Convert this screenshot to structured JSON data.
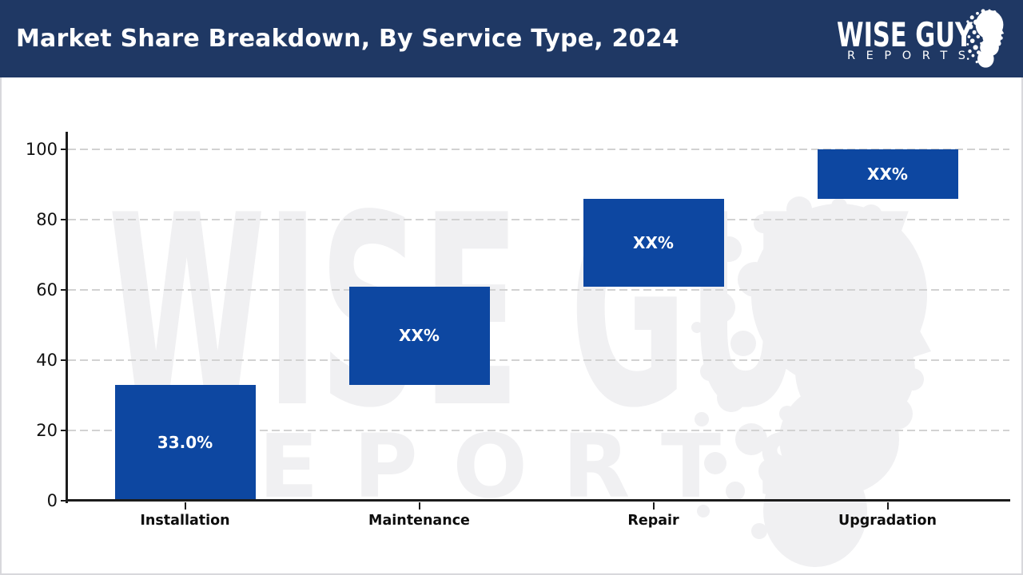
{
  "header": {
    "title": "Market Share Breakdown, By Service Type, 2024",
    "logo_line1": "WISE GUY",
    "logo_line2": "REPORTS"
  },
  "watermark": {
    "line1": "WISE GUY",
    "line2": "REPORTS"
  },
  "colors": {
    "header_bg": "#1F3864",
    "bar": "#0D47A1",
    "grid": "#D2D2D2",
    "axis": "#1C1C1C",
    "watermark": "#F0F0F2",
    "bar_label": "#FFFFFF"
  },
  "chart_data": {
    "type": "bar",
    "subtype": "waterfall",
    "title": "Market Share Breakdown, By Service Type, 2024",
    "categories": [
      "Installation",
      "Maintenance",
      "Repair",
      "Upgradation"
    ],
    "bars": [
      {
        "category": "Installation",
        "start": 0,
        "end": 33,
        "value": 33,
        "label": "33.0%"
      },
      {
        "category": "Maintenance",
        "start": 33,
        "end": 61,
        "value": 28,
        "label": "XX%"
      },
      {
        "category": "Repair",
        "start": 61,
        "end": 86,
        "value": 25,
        "label": "XX%"
      },
      {
        "category": "Upgradation",
        "start": 86,
        "end": 100,
        "value": 14,
        "label": "XX%"
      }
    ],
    "xlabel": "",
    "ylabel": "",
    "ylim": [
      0,
      100
    ],
    "yticks": [
      0,
      20,
      40,
      60,
      80,
      100
    ],
    "grid": "horizontal-dashed",
    "legend": "none"
  }
}
